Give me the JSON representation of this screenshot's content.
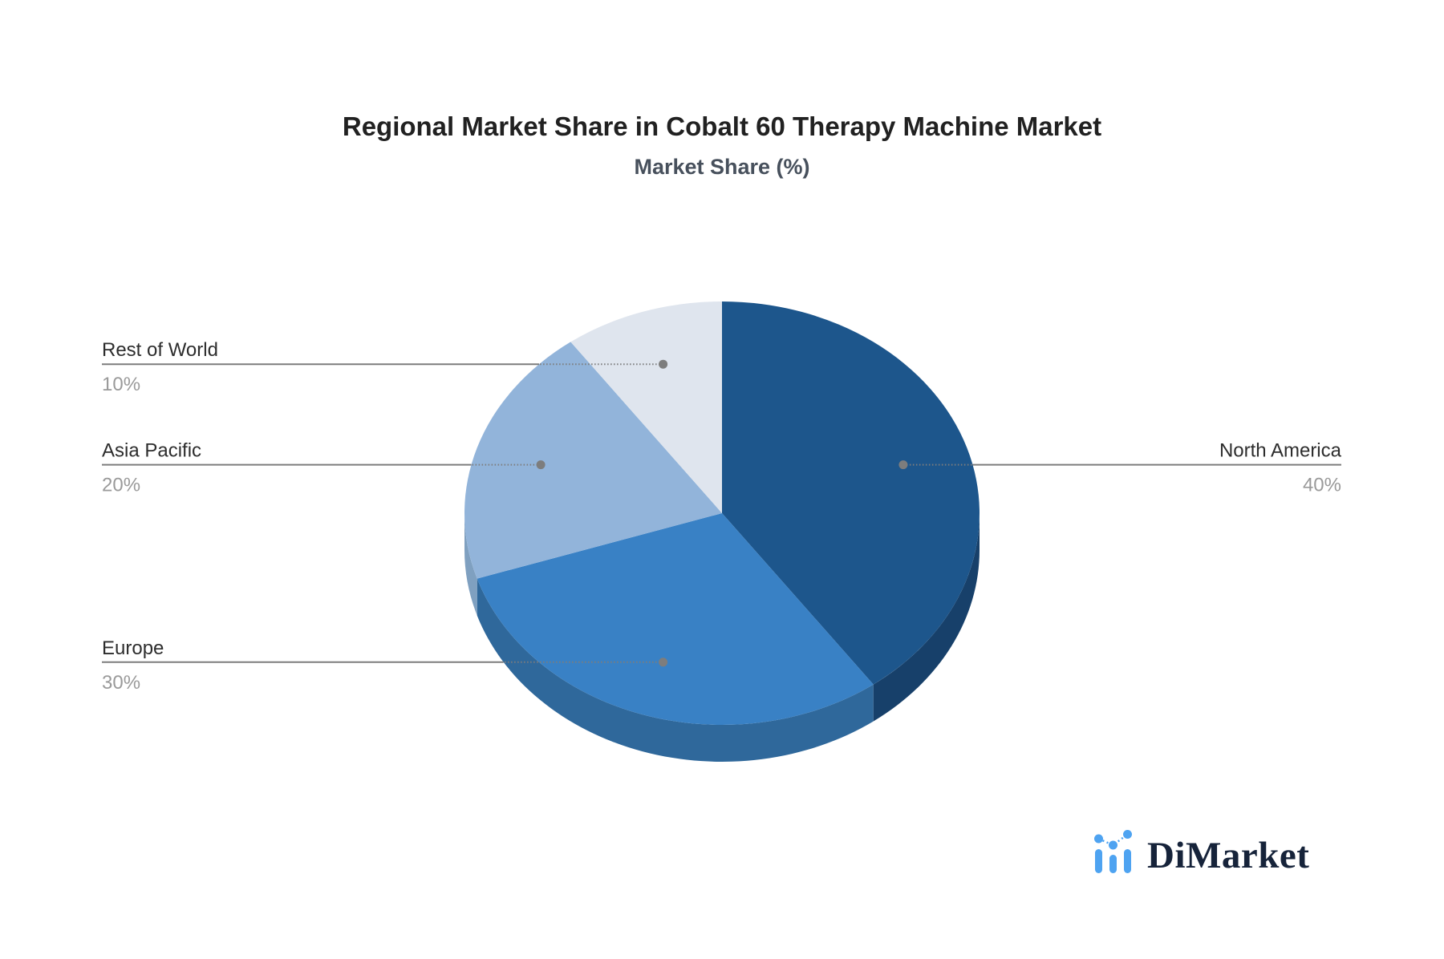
{
  "header": {
    "title": "Regional Market Share in Cobalt 60 Therapy Machine Market",
    "subtitle": "Market Share (%)"
  },
  "chart_data": {
    "type": "pie",
    "style": "3d-pie",
    "title": "Regional Market Share in Cobalt 60 Therapy Machine Market",
    "subtitle": "Market Share (%)",
    "unit": "%",
    "direction": "clockwise",
    "start_angle_deg": 0,
    "legend": "none",
    "slices": [
      {
        "label": "North America",
        "value": 40,
        "display_value": "40%",
        "color": "#1D568C",
        "side_color": "#17406A"
      },
      {
        "label": "Europe",
        "value": 30,
        "display_value": "30%",
        "color": "#3981C5",
        "side_color": "#2F689B"
      },
      {
        "label": "Asia Pacific",
        "value": 20,
        "display_value": "20%",
        "color": "#92B4DA",
        "side_color": "#7FA0C0"
      },
      {
        "label": "Rest of World",
        "value": 10,
        "display_value": "10%",
        "color": "#DFE5EE",
        "side_color": "#C5CFDE"
      }
    ],
    "leader_line_color": "#7D7D7D",
    "label_color": "#2D2D2D",
    "value_color": "#9A9A9A"
  },
  "footer": {
    "logo_text": "DiMarket",
    "logo_text_color": "#16233A",
    "logo_icon": "mini-bar-line-chart-icon",
    "logo_accent_color": "#4EA3F1"
  }
}
